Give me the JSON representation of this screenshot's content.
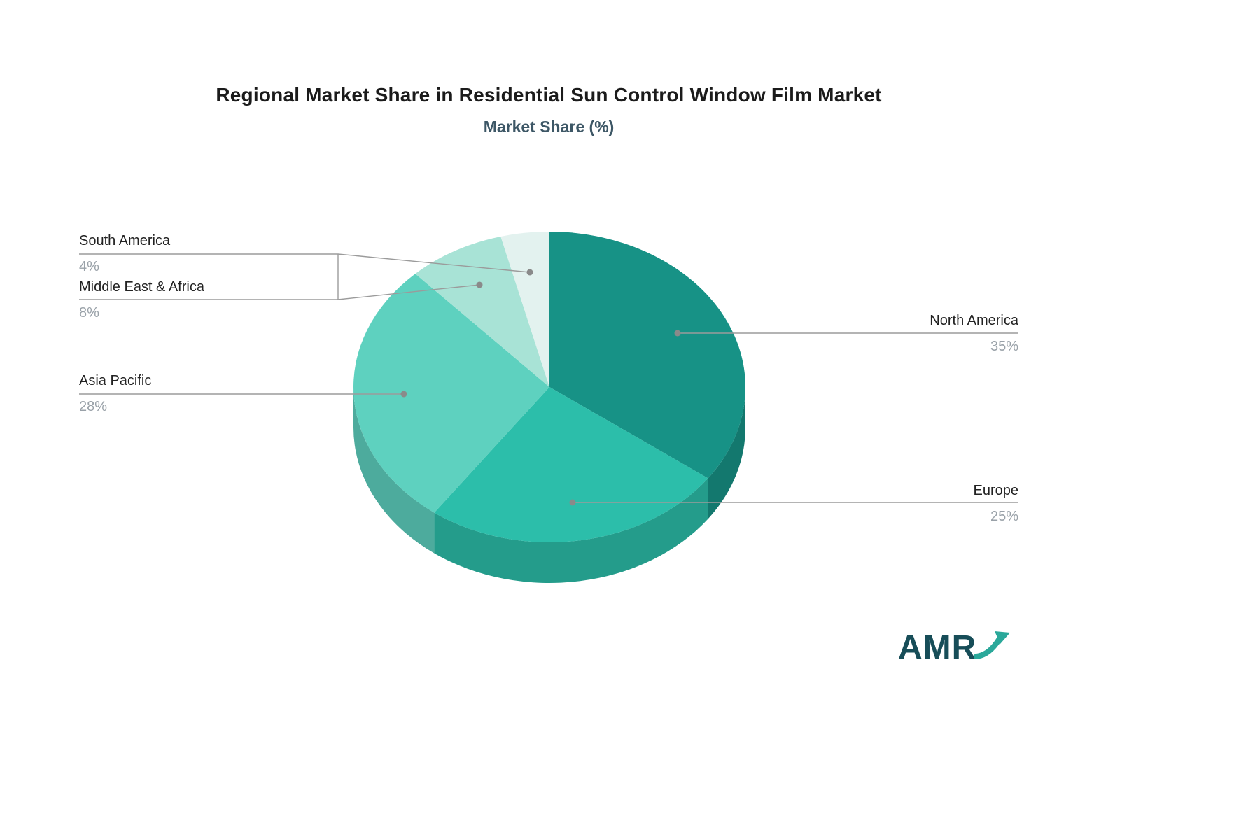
{
  "title": "Regional Market Share in Residential Sun Control Window Film Market",
  "subtitle": "Market Share (%)",
  "logo": {
    "text": "AMR"
  },
  "chart_data": {
    "type": "pie",
    "style": "3d",
    "title": "Regional Market Share in Residential Sun Control Window Film Market",
    "subtitle": "Market Share (%)",
    "unit": "%",
    "start_angle_deg": 0,
    "direction": "clockwise",
    "slices": [
      {
        "label": "North America",
        "value": 35,
        "display": "35%",
        "color": "#179286"
      },
      {
        "label": "Europe",
        "value": 25,
        "display": "25%",
        "color": "#2cbeaa"
      },
      {
        "label": "Asia Pacific",
        "value": 28,
        "display": "28%",
        "color": "#5ed1bf"
      },
      {
        "label": "Middle East & Africa",
        "value": 8,
        "display": "8%",
        "color": "#a8e3d6"
      },
      {
        "label": "South America",
        "value": 4,
        "display": "4%",
        "color": "#e3f2ef"
      }
    ],
    "leader_line_color": "#9b9b9b",
    "label_color": "#222222",
    "value_color": "#99a1a8"
  }
}
